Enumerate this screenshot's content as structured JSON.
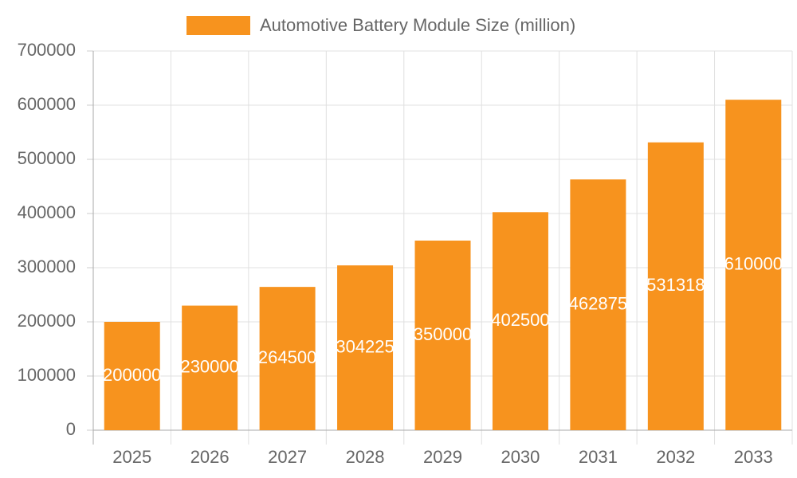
{
  "chart_data": {
    "type": "bar",
    "categories": [
      "2025",
      "2026",
      "2027",
      "2028",
      "2029",
      "2030",
      "2031",
      "2032",
      "2033"
    ],
    "series": [
      {
        "name": "Automotive Battery Module Size (million)",
        "color": "#f7931e",
        "values": [
          200000,
          230000,
          264500,
          304225,
          350000,
          402500,
          462875,
          531318,
          610000
        ]
      }
    ],
    "ylim": [
      0,
      700000
    ],
    "yticks": [
      0,
      100000,
      200000,
      300000,
      400000,
      500000,
      600000,
      700000
    ],
    "grid": true,
    "legend": "top",
    "data_labels": true
  }
}
